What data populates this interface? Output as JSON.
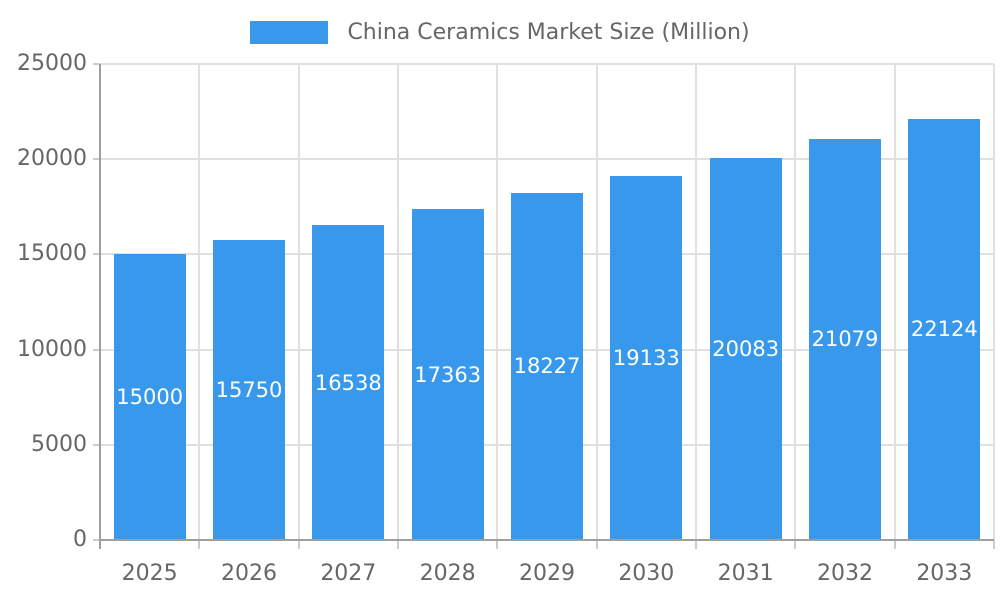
{
  "legend": {
    "label": "China Ceramics Market Size (Million)"
  },
  "colors": {
    "bar": "#3899EC",
    "grid": "#e0e0e0",
    "tick": "#cccccc",
    "axis": "#9e9e9e",
    "text": "#666666",
    "bar_label": "#ffffff"
  },
  "chart_data": {
    "type": "bar",
    "title": "China Ceramics Market Size (Million)",
    "categories": [
      "2025",
      "2026",
      "2027",
      "2028",
      "2029",
      "2030",
      "2031",
      "2032",
      "2033"
    ],
    "series": [
      {
        "name": "China Ceramics Market Size (Million)",
        "values": [
          15000,
          15750,
          16538,
          17363,
          18227,
          19133,
          20083,
          21079,
          22124
        ]
      }
    ],
    "xlabel": "",
    "ylabel": "",
    "ylim": [
      0,
      25000
    ],
    "yticks": [
      0,
      5000,
      10000,
      15000,
      20000,
      25000
    ],
    "grid": "on",
    "legend_position": "top-center",
    "value_labels": "inside-center-white"
  }
}
